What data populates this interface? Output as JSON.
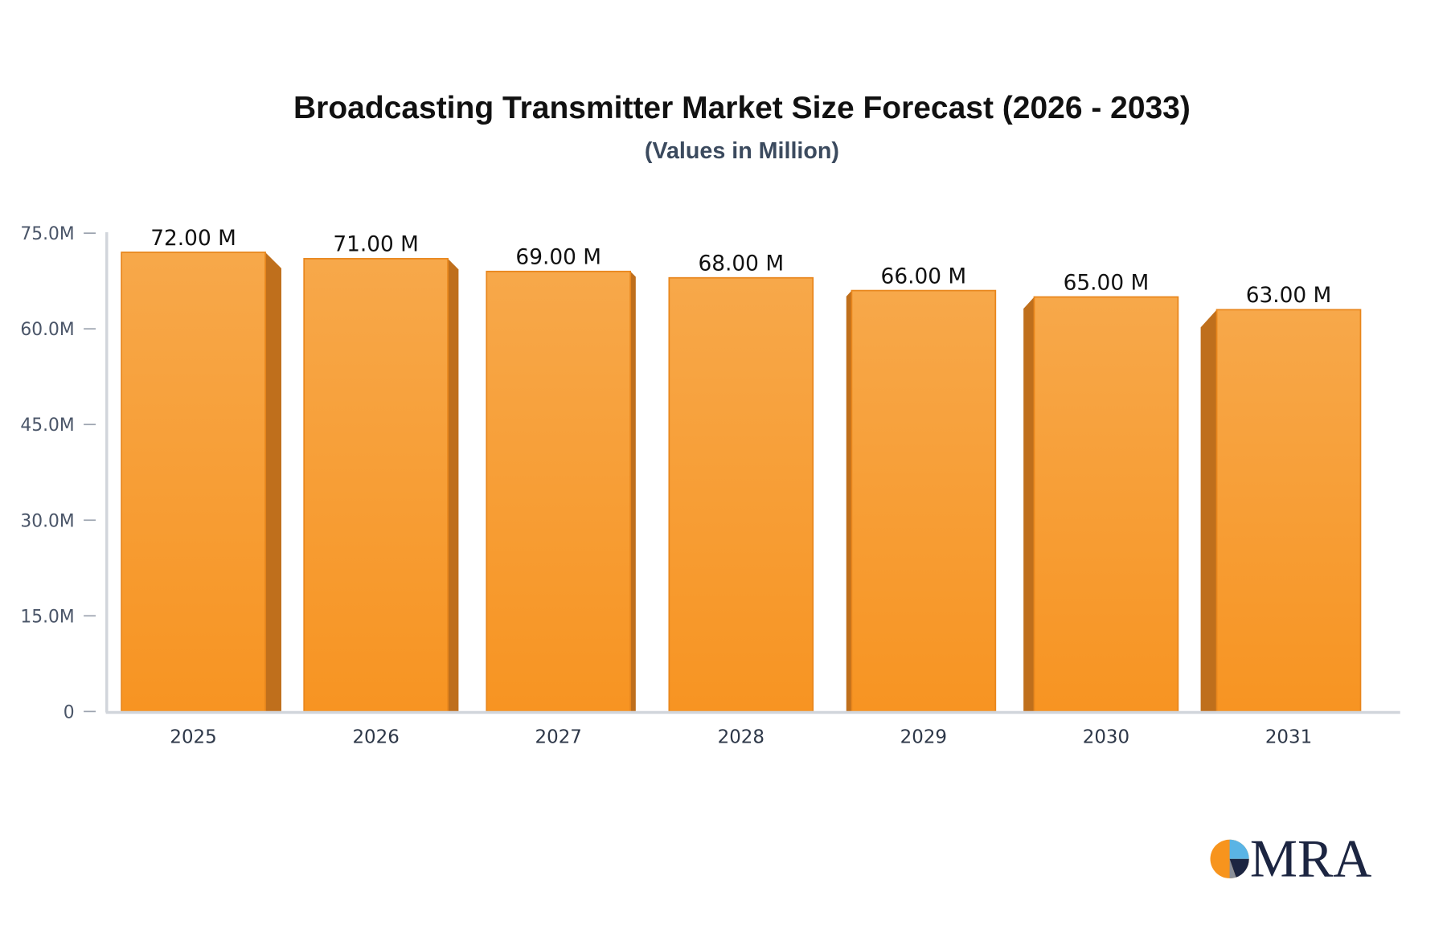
{
  "chart_data": {
    "type": "bar",
    "title": "Broadcasting Transmitter Market Size Forecast (2026 - 2033)",
    "subtitle": "(Values in Million)",
    "categories": [
      "2025",
      "2026",
      "2027",
      "2028",
      "2029",
      "2030",
      "2031"
    ],
    "values": [
      72,
      71,
      69,
      68,
      66,
      65,
      63
    ],
    "data_labels": [
      "72.00 M",
      "71.00 M",
      "69.00 M",
      "68.00 M",
      "66.00 M",
      "65.00 M",
      "63.00 M"
    ],
    "ylim": [
      0,
      75
    ],
    "yticks": [
      0,
      15,
      30,
      45,
      60,
      75
    ],
    "ytick_labels": [
      "0",
      "15.0M",
      "30.0M",
      "45.0M",
      "60.0M",
      "75.0M"
    ],
    "xlabel": "",
    "ylabel": "",
    "grid": false,
    "bar_color": "#f7a545",
    "bar_side_color": "#bf6f1c"
  },
  "logo": {
    "text": "MRA"
  }
}
